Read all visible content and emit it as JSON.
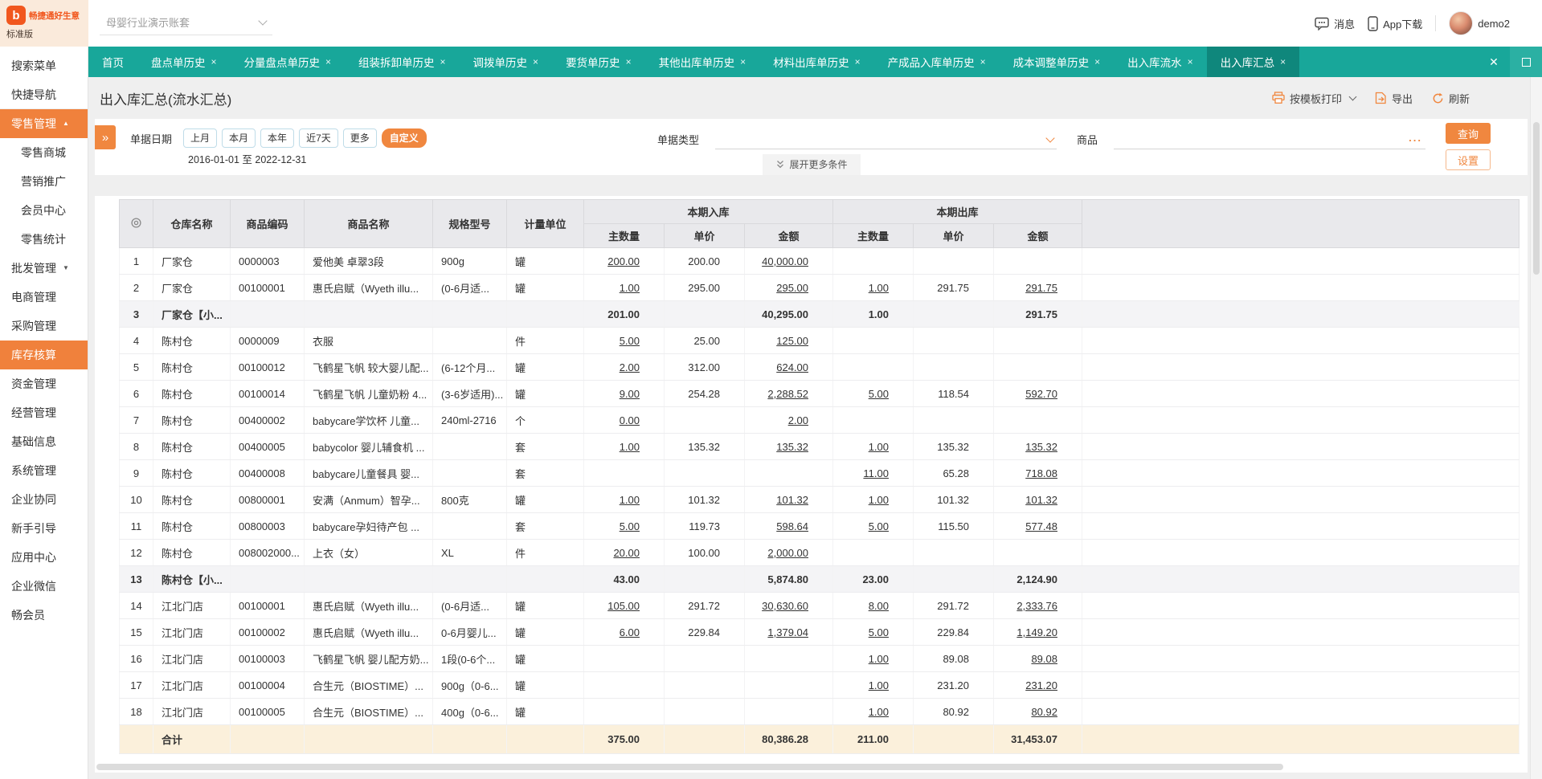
{
  "app": {
    "logo_title": "畅捷通好生意",
    "logo_subtitle": "标准版",
    "logo_glyph": "b",
    "account_select": "母婴行业演示账套",
    "topbar": {
      "messages": "消息",
      "app_download": "App下载",
      "username": "demo2"
    }
  },
  "icons": {
    "close": "×",
    "caret_up": "▲",
    "caret_down": "▼",
    "expander": "»",
    "ellipsis": "..."
  },
  "tabs": [
    {
      "label": "首页",
      "closable": false,
      "active": false
    },
    {
      "label": "盘点单历史",
      "closable": true,
      "active": false
    },
    {
      "label": "分量盘点单历史",
      "closable": true,
      "active": false
    },
    {
      "label": "组装拆卸单历史",
      "closable": true,
      "active": false
    },
    {
      "label": "调拨单历史",
      "closable": true,
      "active": false
    },
    {
      "label": "要货单历史",
      "closable": true,
      "active": false
    },
    {
      "label": "其他出库单历史",
      "closable": true,
      "active": false
    },
    {
      "label": "材料出库单历史",
      "closable": true,
      "active": false
    },
    {
      "label": "产成品入库单历史",
      "closable": true,
      "active": false
    },
    {
      "label": "成本调整单历史",
      "closable": true,
      "active": false
    },
    {
      "label": "出入库流水",
      "closable": true,
      "active": false
    },
    {
      "label": "出入库汇总",
      "closable": true,
      "active": true
    }
  ],
  "sidebar": {
    "items": [
      {
        "label": "搜索菜单"
      },
      {
        "label": "快捷导航"
      },
      {
        "label": "零售管理",
        "active": true,
        "arrow": "up"
      },
      {
        "label": "零售商城",
        "sub": true
      },
      {
        "label": "营销推广",
        "sub": true
      },
      {
        "label": "会员中心",
        "sub": true
      },
      {
        "label": "零售统计",
        "sub": true
      },
      {
        "label": "批发管理",
        "arrow": "down"
      },
      {
        "label": "电商管理"
      },
      {
        "label": "采购管理"
      },
      {
        "label": "库存核算",
        "active": true
      },
      {
        "label": "资金管理"
      },
      {
        "label": "经营管理"
      },
      {
        "label": "基础信息"
      },
      {
        "label": "系统管理"
      },
      {
        "label": "企业协同"
      },
      {
        "label": "新手引导"
      },
      {
        "label": "应用中心"
      },
      {
        "label": "企业微信"
      },
      {
        "label": "畅会员"
      }
    ]
  },
  "page": {
    "title": "出入库汇总(流水汇总)",
    "actions": {
      "print": "按模板打印",
      "export": "导出",
      "refresh": "刷新"
    }
  },
  "filters": {
    "date_label": "单据日期",
    "date_pills": [
      "上月",
      "本月",
      "本年",
      "近7天",
      "更多"
    ],
    "date_custom": "自定义",
    "date_range": "2016-01-01 至 2022-12-31",
    "doc_type_label": "单据类型",
    "product_label": "商品",
    "search_button": "查询",
    "settings_button": "设置",
    "expand_more": "展开更多条件"
  },
  "table": {
    "columns": [
      "仓库名称",
      "商品编码",
      "商品名称",
      "规格型号",
      "计量单位"
    ],
    "group_in": "本期入库",
    "group_out": "本期出库",
    "subcolumns": [
      "主数量",
      "单价",
      "金额"
    ],
    "rows": [
      {
        "idx": "1",
        "type": "data",
        "warehouse": "厂家仓",
        "code": "0000003",
        "name": "爱他美 卓翠3段",
        "spec": "900g",
        "unit": "罐",
        "in": [
          "200.00",
          "200.00",
          "40,000.00"
        ],
        "out": [
          "",
          "",
          ""
        ]
      },
      {
        "idx": "2",
        "type": "data",
        "warehouse": "厂家仓",
        "code": "00100001",
        "name": "惠氏启赋（Wyeth illu...",
        "spec": "(0-6月适...",
        "unit": "罐",
        "in": [
          "1.00",
          "295.00",
          "295.00"
        ],
        "out": [
          "1.00",
          "291.75",
          "291.75"
        ]
      },
      {
        "idx": "3",
        "type": "subtotal",
        "warehouse": "厂家仓【小...",
        "code": "",
        "name": "",
        "spec": "",
        "unit": "",
        "in": [
          "201.00",
          "",
          "40,295.00"
        ],
        "out": [
          "1.00",
          "",
          "291.75"
        ]
      },
      {
        "idx": "4",
        "type": "data",
        "warehouse": "陈村仓",
        "code": "0000009",
        "name": "衣服",
        "spec": "",
        "unit": "件",
        "in": [
          "5.00",
          "25.00",
          "125.00"
        ],
        "out": [
          "",
          "",
          ""
        ]
      },
      {
        "idx": "5",
        "type": "data",
        "warehouse": "陈村仓",
        "code": "00100012",
        "name": "飞鹤星飞帆 较大婴儿配...",
        "spec": "(6-12个月...",
        "unit": "罐",
        "in": [
          "2.00",
          "312.00",
          "624.00"
        ],
        "out": [
          "",
          "",
          ""
        ]
      },
      {
        "idx": "6",
        "type": "data",
        "warehouse": "陈村仓",
        "code": "00100014",
        "name": "飞鹤星飞帆 儿童奶粉 4...",
        "spec": "(3-6岁适用)...",
        "unit": "罐",
        "in": [
          "9.00",
          "254.28",
          "2,288.52"
        ],
        "out": [
          "5.00",
          "118.54",
          "592.70"
        ]
      },
      {
        "idx": "7",
        "type": "data",
        "warehouse": "陈村仓",
        "code": "00400002",
        "name": "babycare学饮杯 儿童...",
        "spec": "240ml-2716",
        "unit": "个",
        "in": [
          "0.00",
          "",
          "2.00"
        ],
        "out": [
          "",
          "",
          ""
        ]
      },
      {
        "idx": "8",
        "type": "data",
        "warehouse": "陈村仓",
        "code": "00400005",
        "name": "babycolor 婴儿辅食机 ...",
        "spec": "",
        "unit": "套",
        "in": [
          "1.00",
          "135.32",
          "135.32"
        ],
        "out": [
          "1.00",
          "135.32",
          "135.32"
        ]
      },
      {
        "idx": "9",
        "type": "data",
        "warehouse": "陈村仓",
        "code": "00400008",
        "name": "babycare儿童餐具 婴...",
        "spec": "",
        "unit": "套",
        "in": [
          "",
          "",
          ""
        ],
        "out": [
          "11.00",
          "65.28",
          "718.08"
        ]
      },
      {
        "idx": "10",
        "type": "data",
        "warehouse": "陈村仓",
        "code": "00800001",
        "name": "安满（Anmum）智孕...",
        "spec": "800克",
        "unit": "罐",
        "in": [
          "1.00",
          "101.32",
          "101.32"
        ],
        "out": [
          "1.00",
          "101.32",
          "101.32"
        ]
      },
      {
        "idx": "11",
        "type": "data",
        "warehouse": "陈村仓",
        "code": "00800003",
        "name": "babycare孕妇待产包 ...",
        "spec": "",
        "unit": "套",
        "in": [
          "5.00",
          "119.73",
          "598.64"
        ],
        "out": [
          "5.00",
          "115.50",
          "577.48"
        ]
      },
      {
        "idx": "12",
        "type": "data",
        "warehouse": "陈村仓",
        "code": "008002000...",
        "name": "上衣（女）",
        "spec": "XL",
        "unit": "件",
        "in": [
          "20.00",
          "100.00",
          "2,000.00"
        ],
        "out": [
          "",
          "",
          ""
        ]
      },
      {
        "idx": "13",
        "type": "subtotal",
        "warehouse": "陈村仓【小...",
        "code": "",
        "name": "",
        "spec": "",
        "unit": "",
        "in": [
          "43.00",
          "",
          "5,874.80"
        ],
        "out": [
          "23.00",
          "",
          "2,124.90"
        ]
      },
      {
        "idx": "14",
        "type": "data",
        "warehouse": "江北门店",
        "code": "00100001",
        "name": "惠氏启赋（Wyeth illu...",
        "spec": "(0-6月适...",
        "unit": "罐",
        "in": [
          "105.00",
          "291.72",
          "30,630.60"
        ],
        "out": [
          "8.00",
          "291.72",
          "2,333.76"
        ]
      },
      {
        "idx": "15",
        "type": "data",
        "warehouse": "江北门店",
        "code": "00100002",
        "name": "惠氏启赋（Wyeth illu...",
        "spec": "0-6月婴儿...",
        "unit": "罐",
        "in": [
          "6.00",
          "229.84",
          "1,379.04"
        ],
        "out": [
          "5.00",
          "229.84",
          "1,149.20"
        ]
      },
      {
        "idx": "16",
        "type": "data",
        "warehouse": "江北门店",
        "code": "00100003",
        "name": "飞鹤星飞帆 婴儿配方奶...",
        "spec": "1段(0-6个...",
        "unit": "罐",
        "in": [
          "",
          "",
          ""
        ],
        "out": [
          "1.00",
          "89.08",
          "89.08"
        ]
      },
      {
        "idx": "17",
        "type": "data",
        "warehouse": "江北门店",
        "code": "00100004",
        "name": "合生元（BIOSTIME）...",
        "spec": "900g（0-6...",
        "unit": "罐",
        "in": [
          "",
          "",
          ""
        ],
        "out": [
          "1.00",
          "231.20",
          "231.20"
        ]
      },
      {
        "idx": "18",
        "type": "data",
        "warehouse": "江北门店",
        "code": "00100005",
        "name": "合生元（BIOSTIME）...",
        "spec": "400g（0-6...",
        "unit": "罐",
        "in": [
          "",
          "",
          ""
        ],
        "out": [
          "1.00",
          "80.92",
          "80.92"
        ]
      }
    ],
    "total": {
      "label": "合计",
      "in": [
        "375.00",
        "",
        "80,386.28"
      ],
      "out": [
        "211.00",
        "",
        "31,453.07"
      ]
    }
  },
  "colors": {
    "accent_orange": "#F0873F",
    "logo_orange": "#F1571E",
    "teal": "#18A79A",
    "teal_active_tab": "#0F877C",
    "total_row_bg": "#FBF0DB",
    "subtotal_row_bg": "#F4F4F6",
    "header_bg": "#E9E9EC"
  }
}
